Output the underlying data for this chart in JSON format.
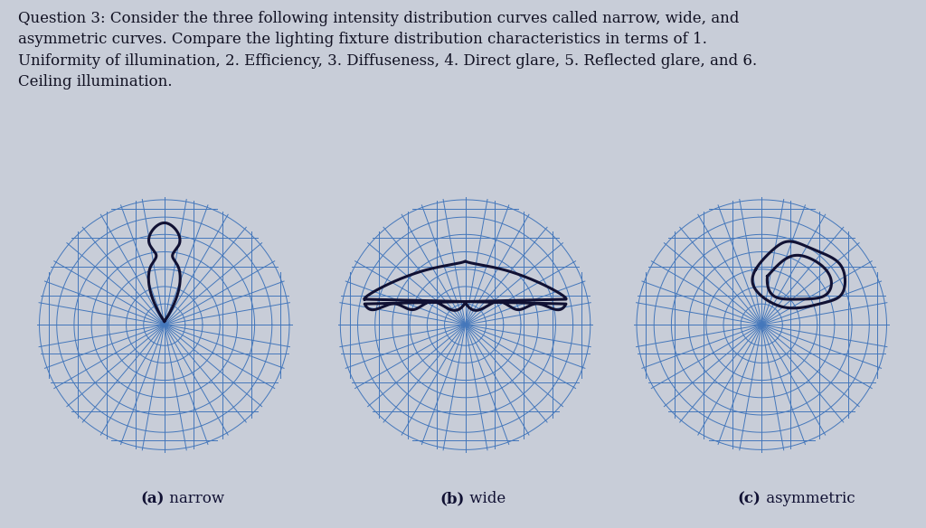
{
  "title_text": "Question 3: Consider the three following intensity distribution curves called narrow, wide, and\nasymmetric curves. Compare the lighting fixture distribution characteristics in terms of 1.\nUniformity of illumination, 2. Efficiency, 3. Diffuseness, 4. Direct glare, 5. Reflected glare, and 6.\nCeiling illumination.",
  "title_fontsize": 12,
  "background_color": "#c8cdd8",
  "panel_bg": "#c5ccd8",
  "panel_border": "#99aabb",
  "grid_color": "#4477bb",
  "curve_color": "#111133",
  "label_bold": [
    "(a)",
    "(b)",
    "(c)"
  ],
  "label_normal": [
    " narrow",
    " wide",
    " asymmetric"
  ],
  "label_fontsize": 12
}
